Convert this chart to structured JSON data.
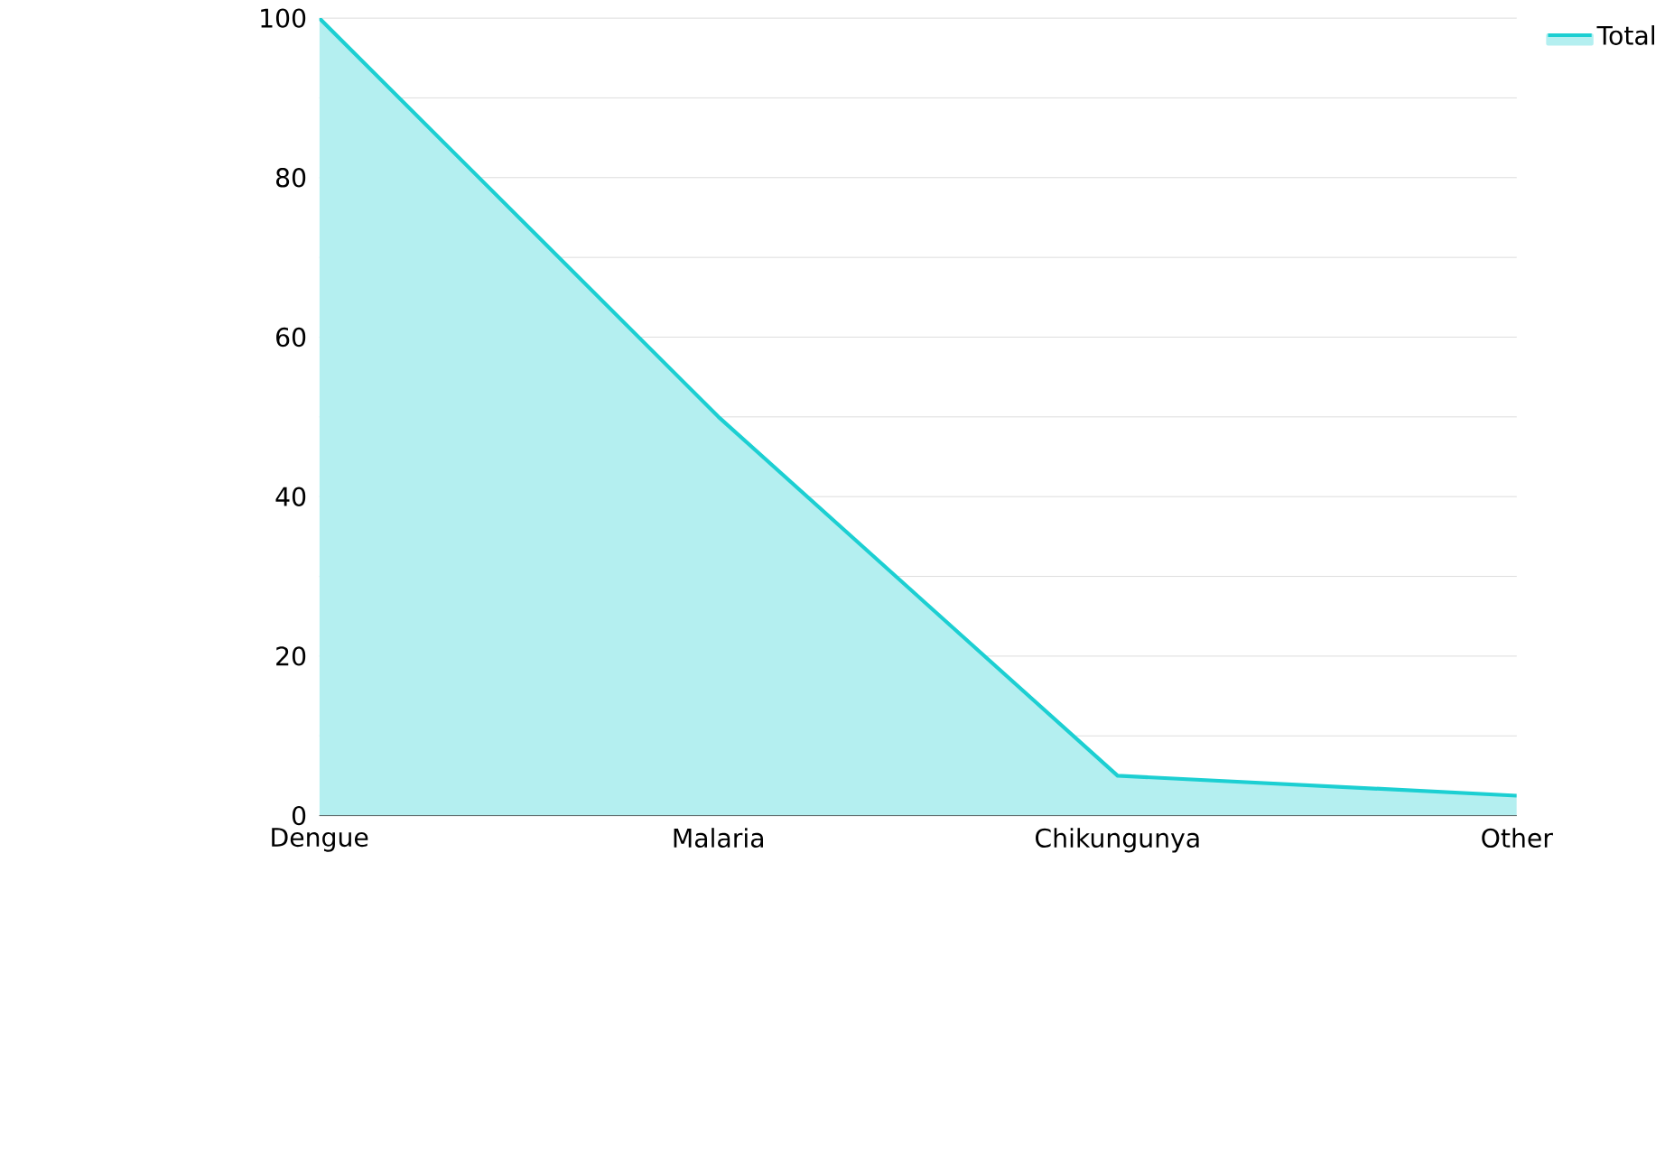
{
  "chart_data": {
    "type": "area",
    "categories": [
      "Dengue",
      "Malaria",
      "Chikungunya",
      "Other"
    ],
    "series": [
      {
        "name": "Total",
        "color": "#1ccfd2",
        "values": [
          100,
          50,
          5,
          2.5
        ]
      }
    ],
    "ylim": [
      0,
      100
    ],
    "yticks": [
      0,
      {
        "value": 10,
        "label": null
      },
      20,
      {
        "value": 30,
        "label": null
      },
      40,
      {
        "value": 50,
        "label": null
      },
      60,
      {
        "value": 70,
        "label": null
      },
      80,
      {
        "value": 90,
        "label": null
      },
      100
    ],
    "grid": "y",
    "legend": "top right"
  }
}
